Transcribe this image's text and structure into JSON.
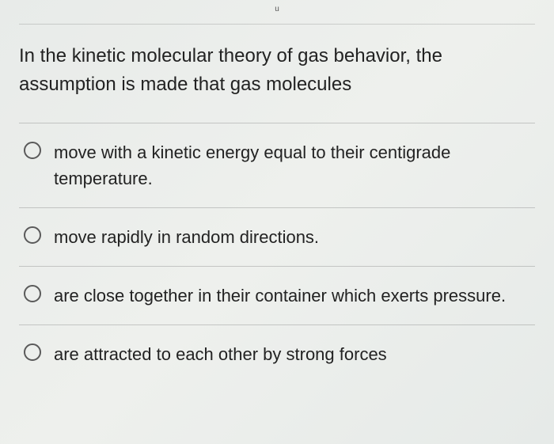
{
  "question": {
    "stem": "In the kinetic molecular theory of gas behavior, the assumption is made that gas molecules",
    "options": [
      {
        "label": "move with a kinetic energy equal to their centigrade temperature."
      },
      {
        "label": "move rapidly in random directions."
      },
      {
        "label": "are close together in their container which exerts pressure."
      },
      {
        "label": "are attracted to each other by strong forces"
      }
    ]
  },
  "colors": {
    "text": "#222222",
    "border": "rgba(100,100,100,0.3)",
    "radio_border": "#5a5a5a",
    "background": "#eceeec"
  },
  "top_marker": "u"
}
